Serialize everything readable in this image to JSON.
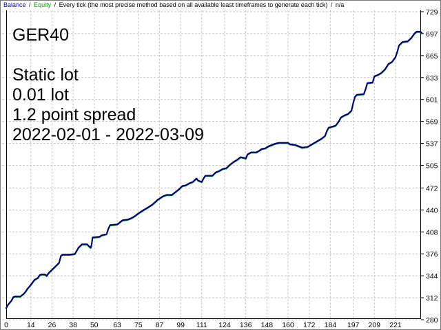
{
  "header": {
    "balance_label": "Balance",
    "separator": "/",
    "equity_label": "Equity",
    "method_label": "Every tick (the most precise method based on all available least timeframes to generate each tick)",
    "na_label": "n/a"
  },
  "annotations": {
    "symbol": "GER40",
    "settings": [
      "Static lot",
      "0.01 lot",
      "1.2 point spread"
    ],
    "period": "2022-02-01 - 2022-03-09"
  },
  "colors": {
    "balance_line": "#000080",
    "equity_line": "#008000",
    "grid": "#c8c8c8",
    "axis": "#000000",
    "tick_text": "#000000",
    "background": "#ffffff"
  },
  "chart_data": {
    "type": "line",
    "title": "",
    "legend": [
      "Balance",
      "Equity"
    ],
    "grid": true,
    "x_axis": {
      "ticks": [
        0,
        14,
        26,
        38,
        50,
        63,
        75,
        87,
        99,
        111,
        124,
        136,
        148,
        160,
        172,
        184,
        197,
        209,
        221
      ],
      "min": 0,
      "max": 236
    },
    "y_axis": {
      "ticks": [
        729,
        697,
        665,
        633,
        601,
        569,
        537,
        505,
        472,
        440,
        408,
        376,
        344,
        312,
        280
      ],
      "min": 280,
      "max": 731
    },
    "series": [
      {
        "name": "Balance",
        "color": "#000080",
        "points": [
          [
            0,
            297
          ],
          [
            1,
            302
          ],
          [
            2,
            305
          ],
          [
            3,
            308
          ],
          [
            4,
            313
          ],
          [
            5,
            314
          ],
          [
            8,
            314
          ],
          [
            10,
            318
          ],
          [
            11,
            321
          ],
          [
            12,
            325
          ],
          [
            14,
            331
          ],
          [
            16,
            338
          ],
          [
            18,
            341
          ],
          [
            19,
            345
          ],
          [
            20,
            346
          ],
          [
            22,
            346
          ],
          [
            23,
            344
          ],
          [
            24,
            348
          ],
          [
            26,
            353
          ],
          [
            28,
            358
          ],
          [
            30,
            363
          ],
          [
            31,
            373
          ],
          [
            32,
            375
          ],
          [
            36,
            375
          ],
          [
            39,
            376
          ],
          [
            41,
            385
          ],
          [
            43,
            390
          ],
          [
            46,
            390
          ],
          [
            47,
            387
          ],
          [
            48,
            385
          ],
          [
            48.5,
            390
          ],
          [
            49,
            400
          ],
          [
            53,
            401
          ],
          [
            54,
            403
          ],
          [
            57,
            405
          ],
          [
            58,
            413
          ],
          [
            59,
            418
          ],
          [
            63,
            419
          ],
          [
            65,
            423
          ],
          [
            66,
            425
          ],
          [
            69,
            426
          ],
          [
            71,
            428
          ],
          [
            73,
            431
          ],
          [
            75,
            435
          ],
          [
            78,
            440
          ],
          [
            80,
            443
          ],
          [
            83,
            448
          ],
          [
            86,
            455
          ],
          [
            89,
            460
          ],
          [
            91,
            462
          ],
          [
            94,
            462
          ],
          [
            96,
            466
          ],
          [
            98,
            470
          ],
          [
            100,
            475
          ],
          [
            102,
            476
          ],
          [
            104,
            479
          ],
          [
            106,
            481
          ],
          [
            108,
            486
          ],
          [
            109,
            483
          ],
          [
            111,
            481
          ],
          [
            112,
            486
          ],
          [
            113,
            490
          ],
          [
            117,
            490
          ],
          [
            119,
            495
          ],
          [
            121,
            497
          ],
          [
            123,
            500
          ],
          [
            125,
            501
          ],
          [
            127,
            506
          ],
          [
            129,
            510
          ],
          [
            131,
            513
          ],
          [
            133,
            517
          ],
          [
            135,
            516
          ],
          [
            136,
            515
          ],
          [
            137,
            521
          ],
          [
            139,
            524
          ],
          [
            142,
            524
          ],
          [
            144,
            527
          ],
          [
            145,
            529
          ],
          [
            147,
            530
          ],
          [
            149,
            533
          ],
          [
            151,
            535
          ],
          [
            153,
            537
          ],
          [
            155,
            538
          ],
          [
            160,
            538
          ],
          [
            161,
            536
          ],
          [
            164,
            535
          ],
          [
            166,
            533
          ],
          [
            168,
            531
          ],
          [
            171,
            532
          ],
          [
            173,
            535
          ],
          [
            175,
            538
          ],
          [
            177,
            541
          ],
          [
            179,
            544
          ],
          [
            181,
            548
          ],
          [
            182,
            555
          ],
          [
            183,
            560
          ],
          [
            187,
            563
          ],
          [
            189,
            570
          ],
          [
            190,
            575
          ],
          [
            192,
            578
          ],
          [
            194,
            580
          ],
          [
            196,
            585
          ],
          [
            197,
            596
          ],
          [
            198,
            605
          ],
          [
            199,
            608
          ],
          [
            203,
            609
          ],
          [
            204,
            616
          ],
          [
            205,
            625
          ],
          [
            208,
            626
          ],
          [
            209,
            635
          ],
          [
            211,
            637
          ],
          [
            213,
            640
          ],
          [
            215,
            645
          ],
          [
            217,
            653
          ],
          [
            219,
            656
          ],
          [
            221,
            663
          ],
          [
            222,
            671
          ],
          [
            223,
            680
          ],
          [
            225,
            685
          ],
          [
            228,
            686
          ],
          [
            230,
            691
          ],
          [
            232,
            698
          ],
          [
            233,
            700
          ],
          [
            235,
            700
          ],
          [
            236,
            698
          ]
        ]
      },
      {
        "name": "Equity",
        "color": "#008000",
        "coincident_with": "Balance"
      }
    ]
  }
}
